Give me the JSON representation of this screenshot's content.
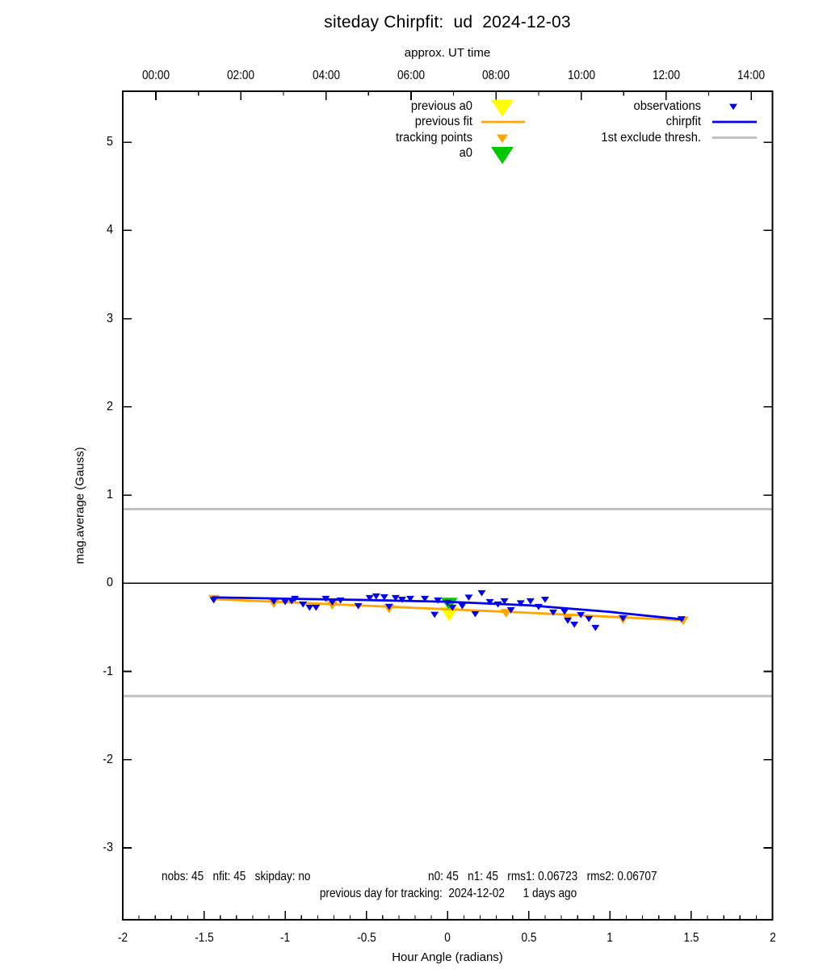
{
  "chart_data": {
    "type": "scatter",
    "title": "siteday Chirpfit:  ud  2024-12-03",
    "x2label": "approx. UT time",
    "xlabel": "Hour Angle (radians)",
    "ylabel": "mag.average (Gauss)",
    "x_axis": {
      "min": -2,
      "max": 2,
      "major_ticks": [
        -2,
        -1.5,
        -1,
        -0.5,
        0,
        0.5,
        1,
        1.5,
        2
      ],
      "major_tick_labels": [
        "-2",
        "-1.5",
        "-1",
        "-0.5",
        "0",
        "0.5",
        "1",
        "1.5",
        "2"
      ],
      "minor_step": 0.1
    },
    "x2_axis": {
      "major_hours": [
        0,
        2,
        4,
        6,
        8,
        10,
        12,
        14
      ],
      "major_tick_labels": [
        "00:00",
        "02:00",
        "04:00",
        "06:00",
        "08:00",
        "10:00",
        "12:00",
        "14:00"
      ],
      "minor_hours": [
        1,
        3,
        5,
        7,
        9,
        11,
        13
      ],
      "ha_at_hour0": -1.796,
      "ha_per_hour": 0.2618
    },
    "y_axis": {
      "min": -3.815,
      "max": 5.578,
      "major_ticks": [
        -3,
        -2,
        -1,
        0,
        1,
        2,
        3,
        4,
        5
      ],
      "major_tick_labels": [
        "-3",
        "-2",
        "-1",
        "0",
        "1",
        "2",
        "3",
        "4",
        "5"
      ],
      "zero_line": 0
    },
    "exclude_thresholds": [
      0.84,
      -1.28
    ],
    "series": {
      "observations": [
        [
          -1.44,
          -0.185
        ],
        [
          -1.07,
          -0.2
        ],
        [
          -1.0,
          -0.206
        ],
        [
          -0.96,
          -0.197
        ],
        [
          -0.94,
          -0.169
        ],
        [
          -0.89,
          -0.233
        ],
        [
          -0.85,
          -0.27
        ],
        [
          -0.81,
          -0.27
        ],
        [
          -0.75,
          -0.169
        ],
        [
          -0.71,
          -0.21
        ],
        [
          -0.66,
          -0.188
        ],
        [
          -0.55,
          -0.252
        ],
        [
          -0.48,
          -0.16
        ],
        [
          -0.44,
          -0.142
        ],
        [
          -0.39,
          -0.151
        ],
        [
          -0.36,
          -0.26
        ],
        [
          -0.32,
          -0.16
        ],
        [
          -0.28,
          -0.179
        ],
        [
          -0.23,
          -0.169
        ],
        [
          -0.14,
          -0.169
        ],
        [
          -0.08,
          -0.35
        ],
        [
          -0.06,
          -0.188
        ],
        [
          0.0,
          -0.215
        ],
        [
          0.03,
          -0.27
        ],
        [
          0.09,
          -0.252
        ],
        [
          0.13,
          -0.155
        ],
        [
          0.17,
          -0.343
        ],
        [
          0.21,
          -0.105
        ],
        [
          0.26,
          -0.206
        ],
        [
          0.31,
          -0.233
        ],
        [
          0.35,
          -0.197
        ],
        [
          0.39,
          -0.298
        ],
        [
          0.45,
          -0.22
        ],
        [
          0.51,
          -0.197
        ],
        [
          0.56,
          -0.261
        ],
        [
          0.6,
          -0.179
        ],
        [
          0.65,
          -0.325
        ],
        [
          0.72,
          -0.316
        ],
        [
          0.74,
          -0.417
        ],
        [
          0.78,
          -0.462
        ],
        [
          0.82,
          -0.353
        ],
        [
          0.87,
          -0.398
        ],
        [
          0.91,
          -0.499
        ],
        [
          1.08,
          -0.39
        ],
        [
          1.44,
          -0.4
        ]
      ],
      "tracking_points": [
        [
          -1.44,
          -0.17
        ],
        [
          -1.07,
          -0.22
        ],
        [
          -0.71,
          -0.24
        ],
        [
          -0.36,
          -0.28
        ],
        [
          0.36,
          -0.33
        ],
        [
          0.74,
          -0.385
        ],
        [
          1.08,
          -0.4
        ],
        [
          1.45,
          -0.415
        ]
      ],
      "chirpfit": [
        [
          -1.445,
          -0.16
        ],
        [
          -1.0,
          -0.175
        ],
        [
          -0.5,
          -0.19
        ],
        [
          0,
          -0.21
        ],
        [
          0.5,
          -0.25
        ],
        [
          1.0,
          -0.325
        ],
        [
          1.447,
          -0.41
        ]
      ],
      "previous_fit": [
        [
          -1.445,
          -0.18
        ],
        [
          -1.0,
          -0.215
        ],
        [
          -0.5,
          -0.255
        ],
        [
          0,
          -0.295
        ],
        [
          0.5,
          -0.335
        ],
        [
          1.0,
          -0.38
        ],
        [
          1.447,
          -0.42
        ]
      ],
      "a0": [
        0.01,
        -0.22
      ],
      "previous_a0": [
        0.01,
        -0.33
      ]
    },
    "legend": {
      "left": [
        {
          "label": "previous a0",
          "sample": "triangle-large",
          "color": "yellow"
        },
        {
          "label": "previous fit",
          "sample": "line",
          "color": "orange"
        },
        {
          "label": "tracking points",
          "sample": "triangle-small",
          "color": "orange"
        },
        {
          "label": "a0",
          "sample": "triangle-large",
          "color": "green"
        }
      ],
      "right": [
        {
          "label": "observations",
          "sample": "triangle-tiny",
          "color": "blue"
        },
        {
          "label": "chirpfit",
          "sample": "line",
          "color": "blue"
        },
        {
          "label": "1st exclude thresh.",
          "sample": "line",
          "color": "gray"
        }
      ]
    },
    "stats": {
      "line1_left": "nobs: 45   nfit: 45   skipday: no",
      "line1_right": "n0: 45   n1: 45   rms1: 0.06723   rms2: 0.06707",
      "line2": "previous day for tracking:  2024-12-02      1 days ago"
    },
    "colors": {
      "blue": "#0000ee",
      "orange": "#ffa500",
      "yellow": "#ffff00",
      "green": "#00c800",
      "gray": "#c0c0c0",
      "black": "#000000"
    }
  }
}
